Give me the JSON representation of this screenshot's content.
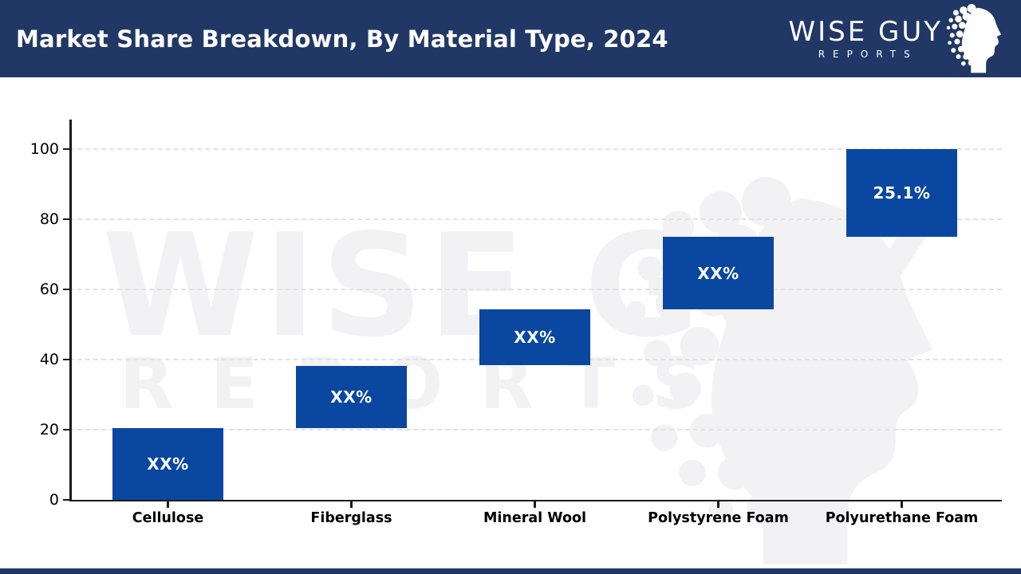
{
  "header": {
    "title": "Market Share Breakdown, By Material Type, 2024",
    "logo": {
      "wordmark": "WISE GUY",
      "subtitle": "REPORTS"
    }
  },
  "watermark": {
    "wordmark": "WISE GUY",
    "subtitle": "REPORTS"
  },
  "footer": {},
  "colors": {
    "header_bg": "#213866",
    "footer_bg": "#213866",
    "bar": "#0a47a0",
    "bar_label": "#ffffff",
    "axis": "#1a1a1a",
    "grid": "#e2e2e2",
    "tick_label": "#000000",
    "watermark": "#f2f2f4",
    "background": "#ffffff"
  },
  "chart_data": {
    "type": "bar",
    "subtype": "waterfall",
    "title": "Market Share Breakdown, By Material Type, 2024",
    "xlabel": "",
    "ylabel": "",
    "ylim": [
      0,
      108
    ],
    "yticks": [
      0,
      20,
      40,
      60,
      80,
      100
    ],
    "grid": "horizontal-dashed",
    "legend": "none",
    "categories": [
      "Cellulose",
      "Fiberglass",
      "Mineral Wool",
      "Polystyrene Foam",
      "Polyurethane Foam"
    ],
    "segments": [
      {
        "category": "Cellulose",
        "start": 0,
        "end": 20.4,
        "label": "XX%"
      },
      {
        "category": "Fiberglass",
        "start": 20.5,
        "end": 38.2,
        "label": "XX%"
      },
      {
        "category": "Mineral Wool",
        "start": 38.3,
        "end": 54.3,
        "label": "XX%"
      },
      {
        "category": "Polystyrene Foam",
        "start": 54.4,
        "end": 74.9,
        "label": "XX%"
      },
      {
        "category": "Polyurethane Foam",
        "start": 74.9,
        "end": 100,
        "label": "25.1%"
      }
    ]
  }
}
